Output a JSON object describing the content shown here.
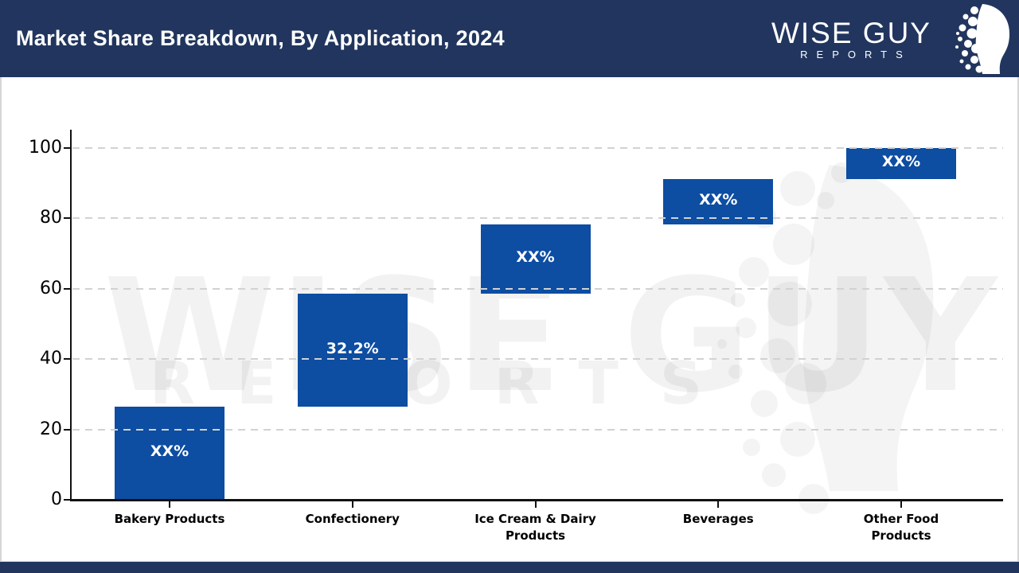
{
  "header": {
    "title": "Market Share Breakdown, By Application, 2024",
    "logo_line1": "WISE GUY",
    "logo_line2": "REPORTS"
  },
  "watermark": {
    "line1": "WISE GUY",
    "line2": "REPORTS"
  },
  "colors": {
    "header_bg": "#21355e",
    "footer_bg": "#21355e",
    "bar": "#0d4da2",
    "grid": "#d2d2d2",
    "axis": "#111111"
  },
  "chart_data": {
    "type": "bar",
    "variant": "waterfall",
    "title": "Market Share Breakdown, By Application, 2024",
    "categories": [
      "Bakery Products",
      "Confectionery",
      "Ice Cream & Dairy Products",
      "Beverages",
      "Other Food Products"
    ],
    "category_lines": [
      [
        "Bakery Products"
      ],
      [
        "Confectionery"
      ],
      [
        "Ice Cream & Dairy",
        "Products"
      ],
      [
        "Beverages"
      ],
      [
        "Other Food",
        "Products"
      ]
    ],
    "series": [
      {
        "name": "Market Share %",
        "starts": [
          0,
          26.5,
          58.7,
          78.3,
          91.2
        ],
        "values": [
          26.5,
          32.2,
          19.6,
          12.9,
          8.8
        ]
      }
    ],
    "bar_labels": [
      "XX%",
      "32.2%",
      "XX%",
      "XX%",
      "XX%"
    ],
    "bar_color": "#0d4da2",
    "xlabel": "",
    "ylabel": "",
    "ylim": [
      0,
      100
    ],
    "yticks": [
      0,
      20,
      40,
      60,
      80,
      100
    ],
    "grid": "horizontal-dashed",
    "legend": "none"
  }
}
